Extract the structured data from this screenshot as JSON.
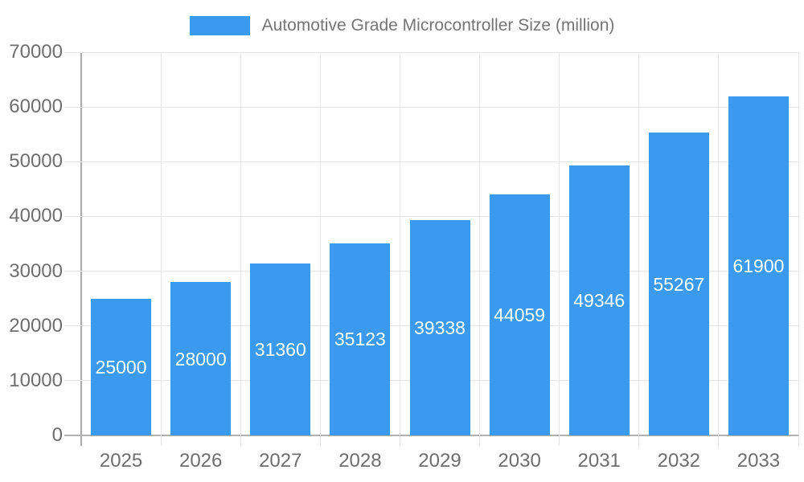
{
  "legend": {
    "swatch_color": "#3b99ee",
    "position": "top"
  },
  "chart_data": {
    "type": "bar",
    "title": "Automotive Grade Microcontroller Size (million)",
    "series_name": "Automotive Grade Microcontroller Size (million)",
    "categories": [
      "2025",
      "2026",
      "2027",
      "2028",
      "2029",
      "2030",
      "2031",
      "2032",
      "2033"
    ],
    "values": [
      25000,
      28000,
      31360,
      35123,
      39338,
      44059,
      49346,
      55267,
      61900
    ],
    "xlabel": "",
    "ylabel": "",
    "ylim": [
      0,
      70000
    ],
    "yticks": [
      0,
      10000,
      20000,
      30000,
      40000,
      50000,
      60000,
      70000
    ],
    "grid": true,
    "legend_position": "top",
    "bar_color": "#3b99ee",
    "value_label_color": "#ffffff",
    "axis_text_color": "#6e6e6e",
    "legend_text_color": "#757575",
    "gridline_color": "#e6e6e6"
  }
}
